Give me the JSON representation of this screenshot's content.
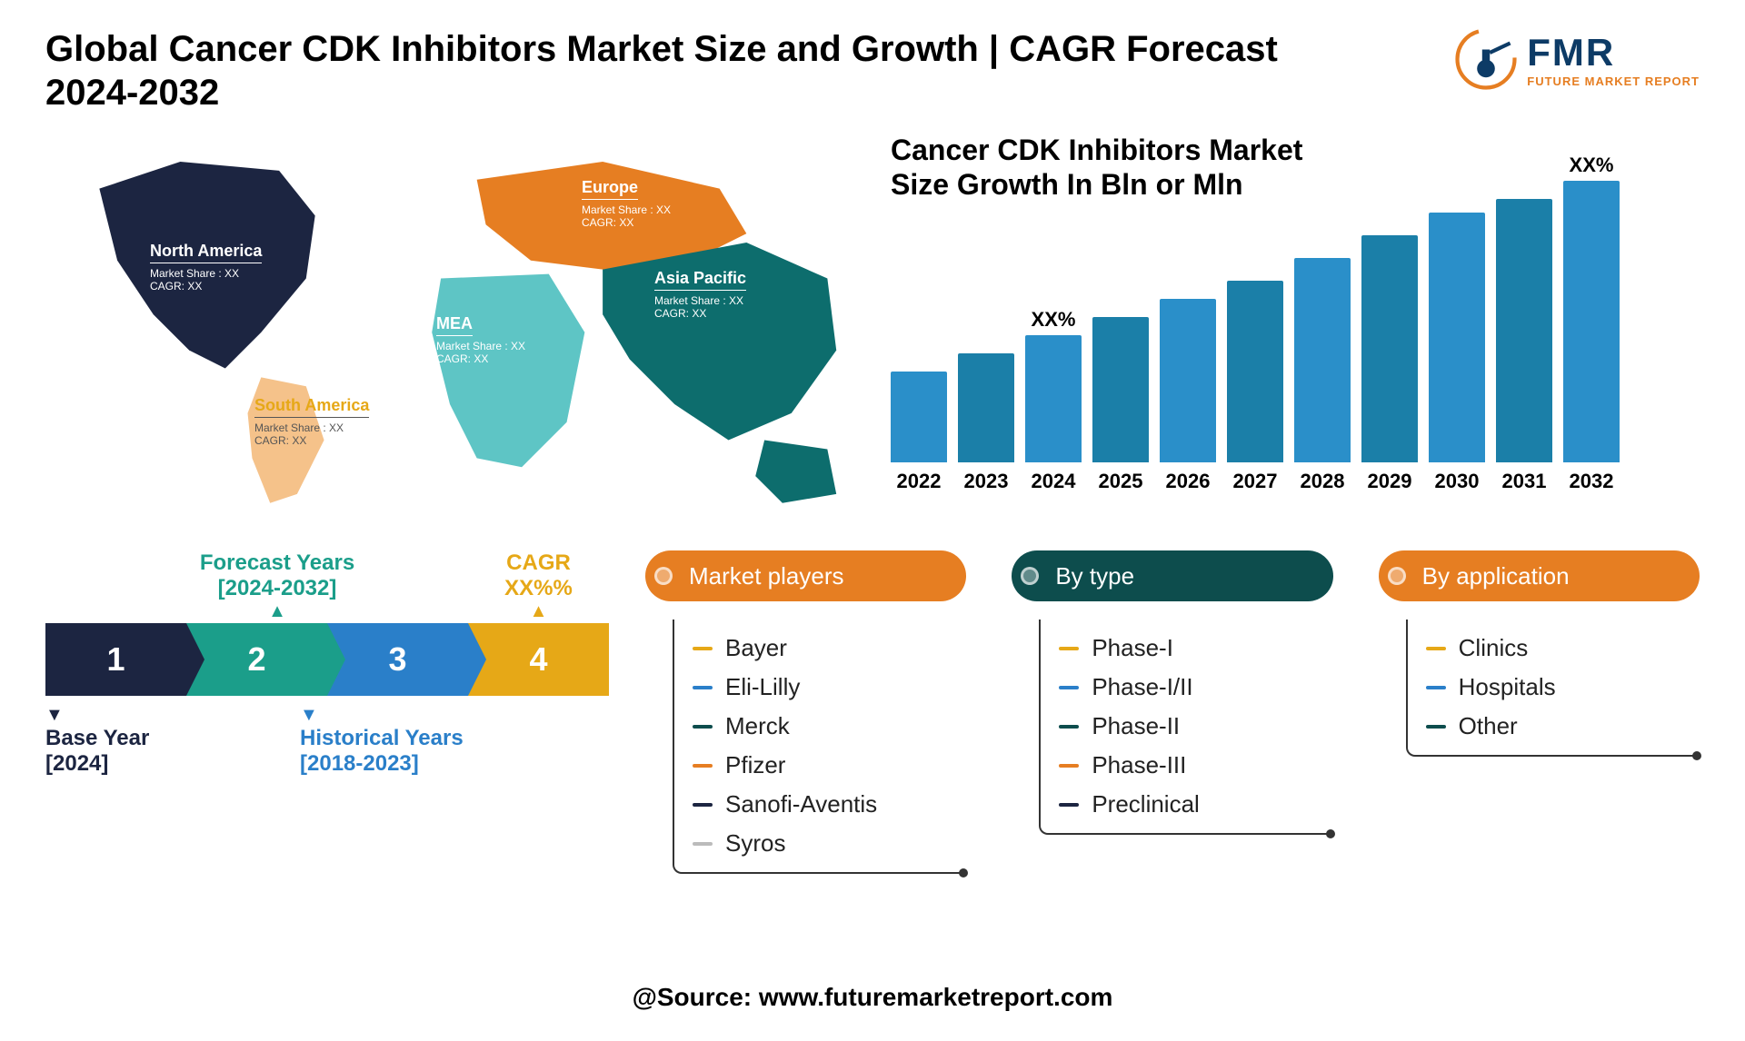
{
  "title": "Global Cancer CDK Inhibitors Market Size and Growth | CAGR Forecast 2024-2032",
  "logo": {
    "main": "FMR",
    "sub": "FUTURE MARKET REPORT"
  },
  "chart": {
    "title": "Cancer CDK Inhibitors Market Size Growth In Bln or Mln",
    "years": [
      "2022",
      "2023",
      "2024",
      "2025",
      "2026",
      "2027",
      "2028",
      "2029",
      "2030",
      "2031",
      "2032"
    ],
    "heights": [
      100,
      120,
      140,
      160,
      180,
      200,
      225,
      250,
      275,
      290,
      310
    ],
    "colors": [
      "#2a8fc9",
      "#1b7fa8",
      "#2a8fc9",
      "#1b7fa8",
      "#2a8fc9",
      "#1b7fa8",
      "#2a8fc9",
      "#1b7fa8",
      "#2a8fc9",
      "#1b7fa8",
      "#2a8fc9"
    ],
    "annot_2024": "XX%",
    "annot_2032": "XX%"
  },
  "map": {
    "regions": [
      {
        "key": "na",
        "name": "North America",
        "color": "#1c2541",
        "share": "Market Share : XX",
        "cagr": "CAGR: XX"
      },
      {
        "key": "sa",
        "name": "South America",
        "color": "#f5c28a",
        "share": "Market Share : XX",
        "cagr": "CAGR: XX"
      },
      {
        "key": "eu",
        "name": "Europe",
        "color": "#e67e22",
        "share": "Market Share : XX",
        "cagr": "CAGR: XX"
      },
      {
        "key": "mea",
        "name": "MEA",
        "color": "#5ec5c5",
        "share": "Market Share : XX",
        "cagr": "CAGR: XX"
      },
      {
        "key": "ap",
        "name": "Asia Pacific",
        "color": "#0d6d6d",
        "share": "Market Share : XX",
        "cagr": "CAGR: XX"
      }
    ]
  },
  "timeline": {
    "forecast_label": "Forecast Years",
    "forecast_range": "[2024-2032]",
    "cagr_label": "CAGR",
    "cagr_value": "XX%%",
    "base_label": "Base Year",
    "base_value": "[2024]",
    "hist_label": "Historical Years",
    "hist_range": "[2018-2023]",
    "segments": [
      "1",
      "2",
      "3",
      "4"
    ]
  },
  "pills": [
    {
      "title": "Market players",
      "header_class": "pill-orange",
      "items": [
        {
          "label": "Bayer",
          "color": "#e6a817"
        },
        {
          "label": "Eli-Lilly",
          "color": "#2a7fc9"
        },
        {
          "label": "Merck",
          "color": "#0d4d4d"
        },
        {
          "label": "Pfizer",
          "color": "#e67e22"
        },
        {
          "label": "Sanofi-Aventis",
          "color": "#1c2541"
        },
        {
          "label": "Syros",
          "color": "#bbb"
        }
      ]
    },
    {
      "title": "By type",
      "header_class": "pill-teal",
      "items": [
        {
          "label": "Phase-I",
          "color": "#e6a817"
        },
        {
          "label": "Phase-I/II",
          "color": "#2a7fc9"
        },
        {
          "label": "Phase-II",
          "color": "#0d4d4d"
        },
        {
          "label": "Phase-III",
          "color": "#e67e22"
        },
        {
          "label": "Preclinical",
          "color": "#1c2541"
        }
      ]
    },
    {
      "title": "By application",
      "header_class": "pill-orange",
      "items": [
        {
          "label": "Clinics",
          "color": "#e6a817"
        },
        {
          "label": "Hospitals",
          "color": "#2a7fc9"
        },
        {
          "label": "Other",
          "color": "#0d4d4d"
        }
      ]
    }
  ],
  "source": "@Source: www.futuremarketreport.com"
}
